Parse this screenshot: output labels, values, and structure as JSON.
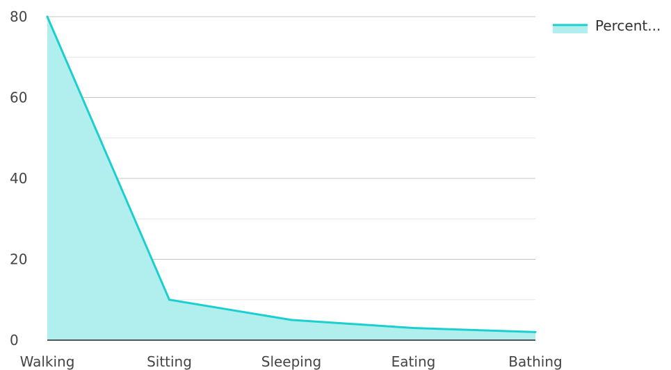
{
  "chart_data": {
    "type": "area",
    "categories": [
      "Walking",
      "Sitting",
      "Sleeping",
      "Eating",
      "Bathing"
    ],
    "series": [
      {
        "name": "Percent...",
        "values": [
          80,
          10,
          5,
          3,
          2
        ]
      }
    ],
    "y_ticks": [
      "0",
      "20",
      "40",
      "60",
      "80"
    ],
    "ylim": [
      0,
      80
    ],
    "grid": true,
    "legend_position": "top-right",
    "colors": {
      "line": "#1ccfcf",
      "fill": "#b1eeee",
      "major_grid": "#c4c4c4",
      "minor_grid": "#e6e6e6",
      "axis": "#222222"
    }
  }
}
